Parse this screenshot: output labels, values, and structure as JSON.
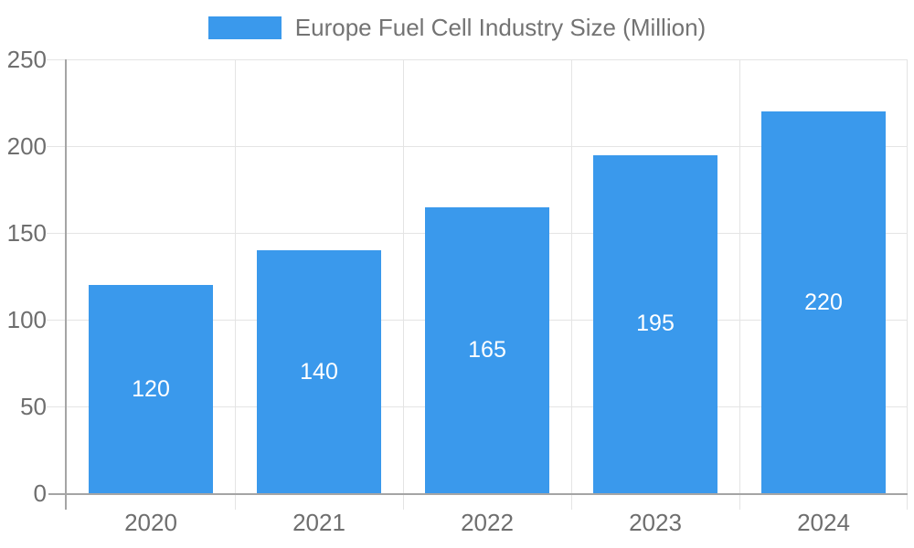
{
  "chart_data": {
    "type": "bar",
    "title": "Europe Fuel Cell Industry Size (Million)",
    "legend": {
      "position": "top",
      "label": "Europe Fuel Cell Industry Size (Million)"
    },
    "categories": [
      "2020",
      "2021",
      "2022",
      "2023",
      "2024"
    ],
    "series": [
      {
        "name": "Europe Fuel Cell Industry Size (Million)",
        "values": [
          120,
          140,
          165,
          195,
          220
        ],
        "data_labels": [
          "120",
          "140",
          "165",
          "195",
          "220"
        ]
      }
    ],
    "xlabel": "",
    "ylabel": "",
    "ylim": [
      0,
      250
    ],
    "yticks": [
      0,
      50,
      100,
      150,
      200,
      250
    ],
    "ytick_labels": [
      "0",
      "50",
      "100",
      "150",
      "200",
      "250"
    ],
    "grid": true,
    "colors": {
      "bar": "#3a99ec",
      "grid": "#e4e4e4",
      "axis": "#a5a5a5",
      "tick_text": "#6e6e6e",
      "legend_text": "#737373",
      "value_text": "#ffffff",
      "background": "#ffffff"
    }
  }
}
